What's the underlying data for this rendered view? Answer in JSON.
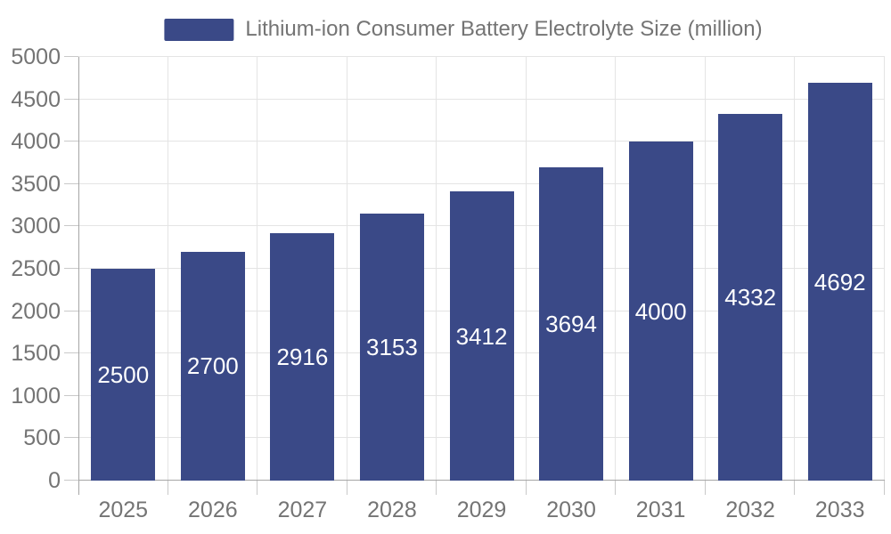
{
  "legend": {
    "label": "Lithium-ion Consumer Battery Electrolyte Size (million)"
  },
  "colors": {
    "bar": "#3A4987",
    "grid": "#E4E4E4",
    "axis": "#A6A6A6",
    "tick": "#C9C9C9",
    "text": "#747474",
    "value_text": "#FFFFFF",
    "background": "#FFFFFF"
  },
  "chart_data": {
    "type": "bar",
    "title": "Lithium-ion Consumer Battery Electrolyte Size (million)",
    "series_name": "Lithium-ion Consumer Battery Electrolyte Size (million)",
    "categories": [
      "2025",
      "2026",
      "2027",
      "2028",
      "2029",
      "2030",
      "2031",
      "2032",
      "2033"
    ],
    "values": [
      2500,
      2700,
      2916,
      3153,
      3412,
      3694,
      4000,
      4332,
      4692
    ],
    "xlabel": "",
    "ylabel": "",
    "ylim": [
      0,
      5000
    ],
    "y_tick_step": 500,
    "grid": true,
    "legend_position": "top",
    "value_labels": "inside-center"
  }
}
